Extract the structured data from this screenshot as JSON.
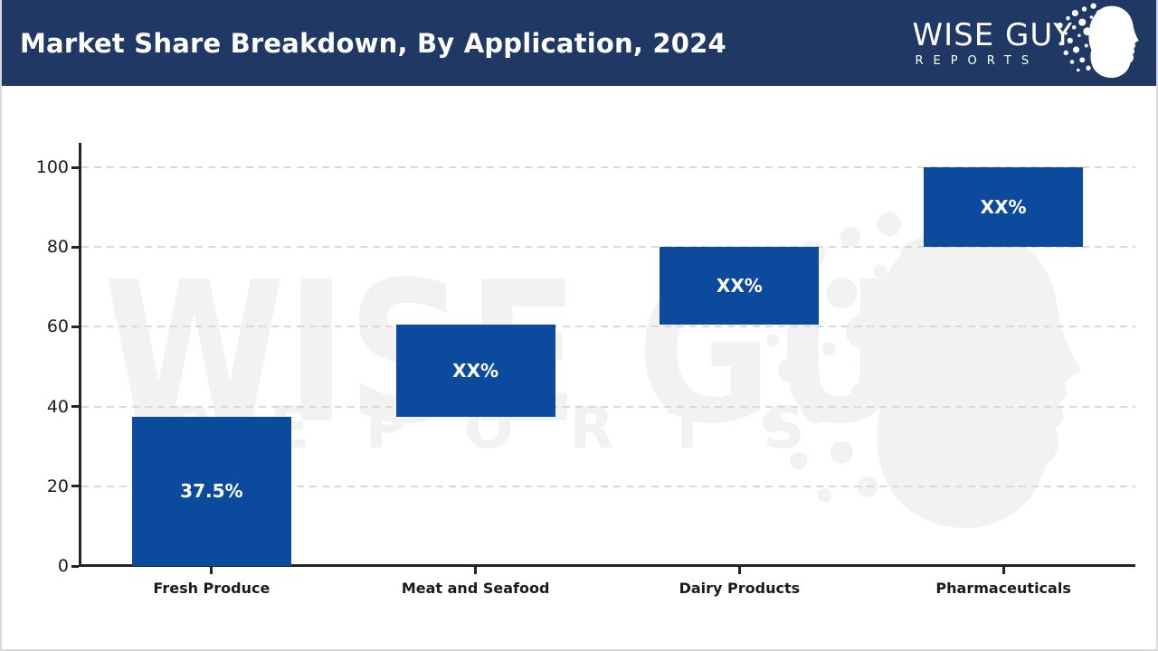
{
  "header": {
    "title": "Market Share Breakdown, By Application, 2024",
    "logo": {
      "line1": "WISE GUY",
      "line2": "REPORTS"
    }
  },
  "watermark": {
    "line1": "WISE GUY",
    "line2": "REPORTS"
  },
  "colors": {
    "header-bg": "#203864",
    "bar-blue": "#0c4a9e",
    "axis": "#242424",
    "grid": "#d9d9d9",
    "text-dark": "#1a1a1a",
    "text-light": "#ffffff",
    "watermark": "#f2f2f2",
    "frame-border": "#d9d9d9"
  },
  "chart_data": {
    "type": "bar",
    "variant": "waterfall",
    "title": "Market Share Breakdown, By Application, 2024",
    "categories": [
      "Fresh Produce",
      "Meat and Seafood",
      "Dairy Products",
      "Pharmaceuticals"
    ],
    "segments": [
      {
        "category": "Fresh Produce",
        "start": 0,
        "end": 37.5,
        "label": "37.5%"
      },
      {
        "category": "Meat and Seafood",
        "start": 37.5,
        "end": 60.5,
        "label": "XX%"
      },
      {
        "category": "Dairy Products",
        "start": 60.5,
        "end": 80,
        "label": "XX%"
      },
      {
        "category": "Pharmaceuticals",
        "start": 80,
        "end": 100,
        "label": "XX%"
      }
    ],
    "xlabel": "",
    "ylabel": "",
    "ylim": [
      0,
      100
    ],
    "yticks": [
      0,
      20,
      40,
      60,
      80,
      100
    ],
    "grid": "horizontal-dashed",
    "legend": "none"
  }
}
